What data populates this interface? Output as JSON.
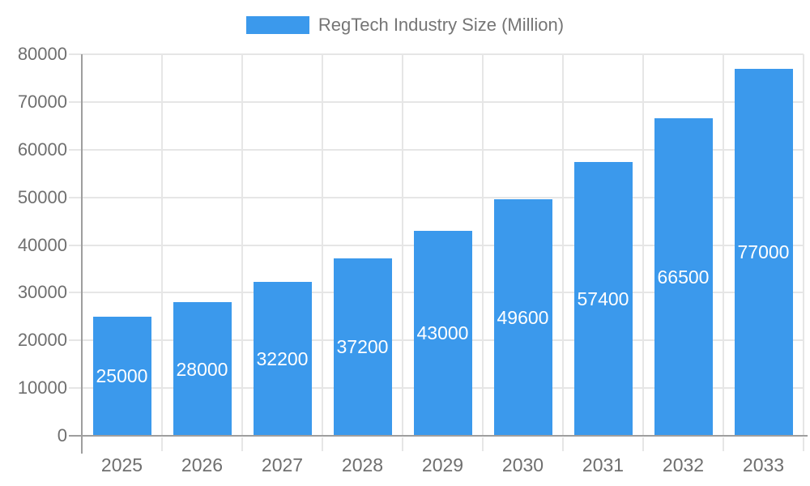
{
  "chart_data": {
    "type": "bar",
    "title": "",
    "legend": "RegTech Industry Size (Million)",
    "legend_position": "top-center",
    "categories": [
      "2025",
      "2026",
      "2027",
      "2028",
      "2029",
      "2030",
      "2031",
      "2032",
      "2033"
    ],
    "values": [
      25000,
      28000,
      32200,
      37200,
      43000,
      49600,
      57400,
      66500,
      77000
    ],
    "value_labels": [
      "25000",
      "28000",
      "32200",
      "37200",
      "43000",
      "49600",
      "57400",
      "66500",
      "77000"
    ],
    "xlabel": "",
    "ylabel": "",
    "ylim": [
      0,
      80000
    ],
    "yticks": [
      "0",
      "10000",
      "20000",
      "30000",
      "40000",
      "50000",
      "60000",
      "70000",
      "80000"
    ],
    "grid": "horizontal lines at each y tick plus vertical lines at category boundaries",
    "value_label_placement": "centered inside bar, white",
    "colors": {
      "bar": "#3B99EC",
      "value_label": "#FFFFFF",
      "axis_text": "#6F6F6F",
      "legend_text": "#757575",
      "gridline": "#E6E6E6",
      "axis_line": "#9E9E9E",
      "background": "#FFFFFF"
    }
  }
}
